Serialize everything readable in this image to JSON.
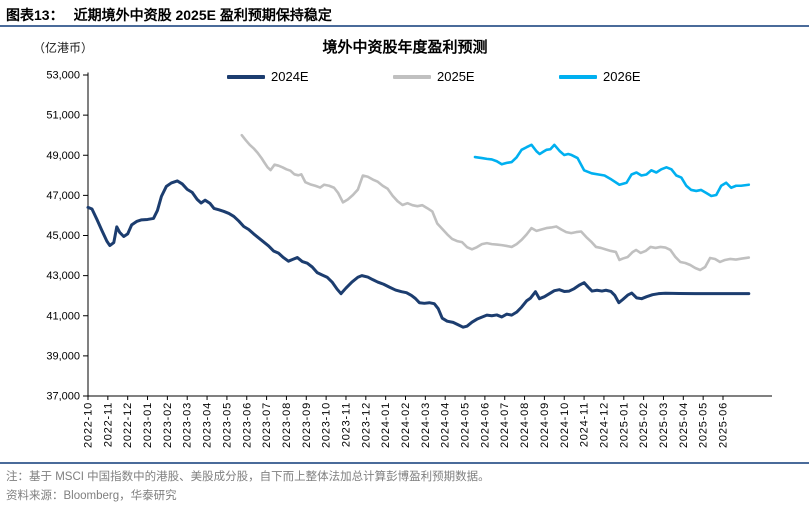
{
  "header": {
    "figure_label": "图表13：",
    "figure_title": "近期境外中资股 2025E 盈利预期保持稳定"
  },
  "chart_data": {
    "type": "line",
    "title": "境外中资股年度盈利预测",
    "y_unit_label": "（亿港币）",
    "legend_position": "top",
    "grid": false,
    "y_axis": {
      "min": 37000,
      "max": 53000,
      "tick_step": 2000,
      "tick_values": [
        37000,
        39000,
        41000,
        43000,
        45000,
        47000,
        49000,
        51000,
        53000
      ]
    },
    "x_tick_labels": [
      "2022-10",
      "2022-11",
      "2022-12",
      "2023-01",
      "2023-02",
      "2023-03",
      "2023-04",
      "2023-05",
      "2023-06",
      "2023-07",
      "2023-08",
      "2023-09",
      "2023-10",
      "2023-11",
      "2023-12",
      "2024-01",
      "2024-02",
      "2024-03",
      "2024-04",
      "2024-05",
      "2024-06",
      "2024-07",
      "2024-08",
      "2024-09",
      "2024-10",
      "2024-11",
      "2024-12",
      "2025-01",
      "2025-02",
      "2025-03",
      "2025-04",
      "2025-05",
      "2025-06"
    ],
    "x_note": "points use t = months since 2022-10",
    "series": [
      {
        "name": "2024E",
        "color": "#1C3D6F",
        "width": 3,
        "points": [
          [
            0,
            46400
          ],
          [
            0.2,
            46320
          ],
          [
            0.45,
            45800
          ],
          [
            0.7,
            45250
          ],
          [
            0.95,
            44720
          ],
          [
            1.1,
            44500
          ],
          [
            1.3,
            44650
          ],
          [
            1.45,
            45430
          ],
          [
            1.6,
            45150
          ],
          [
            1.8,
            44950
          ],
          [
            2.0,
            45080
          ],
          [
            2.2,
            45530
          ],
          [
            2.45,
            45700
          ],
          [
            2.7,
            45780
          ],
          [
            3.0,
            45800
          ],
          [
            3.3,
            45850
          ],
          [
            3.5,
            46250
          ],
          [
            3.7,
            46950
          ],
          [
            3.95,
            47450
          ],
          [
            4.2,
            47620
          ],
          [
            4.5,
            47720
          ],
          [
            4.75,
            47570
          ],
          [
            5.0,
            47300
          ],
          [
            5.25,
            47150
          ],
          [
            5.5,
            46800
          ],
          [
            5.7,
            46620
          ],
          [
            5.9,
            46760
          ],
          [
            6.15,
            46600
          ],
          [
            6.35,
            46350
          ],
          [
            6.6,
            46280
          ],
          [
            6.85,
            46200
          ],
          [
            7.1,
            46100
          ],
          [
            7.35,
            45950
          ],
          [
            7.6,
            45720
          ],
          [
            7.85,
            45450
          ],
          [
            8.1,
            45300
          ],
          [
            8.35,
            45080
          ],
          [
            8.6,
            44880
          ],
          [
            8.85,
            44680
          ],
          [
            9.1,
            44480
          ],
          [
            9.35,
            44230
          ],
          [
            9.6,
            44120
          ],
          [
            9.85,
            43900
          ],
          [
            10.1,
            43720
          ],
          [
            10.35,
            43820
          ],
          [
            10.55,
            43900
          ],
          [
            10.8,
            43700
          ],
          [
            11.05,
            43620
          ],
          [
            11.3,
            43430
          ],
          [
            11.55,
            43150
          ],
          [
            11.8,
            43030
          ],
          [
            12.05,
            42920
          ],
          [
            12.3,
            42680
          ],
          [
            12.55,
            42330
          ],
          [
            12.75,
            42100
          ],
          [
            13.0,
            42380
          ],
          [
            13.3,
            42680
          ],
          [
            13.6,
            42920
          ],
          [
            13.8,
            43000
          ],
          [
            14.1,
            42930
          ],
          [
            14.35,
            42800
          ],
          [
            14.6,
            42680
          ],
          [
            14.9,
            42570
          ],
          [
            15.2,
            42420
          ],
          [
            15.5,
            42280
          ],
          [
            15.8,
            42200
          ],
          [
            16.05,
            42150
          ],
          [
            16.3,
            42010
          ],
          [
            16.5,
            41860
          ],
          [
            16.7,
            41650
          ],
          [
            16.95,
            41620
          ],
          [
            17.2,
            41650
          ],
          [
            17.45,
            41600
          ],
          [
            17.65,
            41350
          ],
          [
            17.85,
            40880
          ],
          [
            18.1,
            40730
          ],
          [
            18.4,
            40670
          ],
          [
            18.65,
            40550
          ],
          [
            18.9,
            40430
          ],
          [
            19.1,
            40480
          ],
          [
            19.35,
            40680
          ],
          [
            19.6,
            40830
          ],
          [
            19.85,
            40930
          ],
          [
            20.1,
            41030
          ],
          [
            20.35,
            41000
          ],
          [
            20.6,
            41040
          ],
          [
            20.85,
            40940
          ],
          [
            21.1,
            41080
          ],
          [
            21.35,
            41030
          ],
          [
            21.6,
            41180
          ],
          [
            21.85,
            41430
          ],
          [
            22.1,
            41740
          ],
          [
            22.3,
            41880
          ],
          [
            22.55,
            42200
          ],
          [
            22.75,
            41850
          ],
          [
            23.0,
            41950
          ],
          [
            23.25,
            42100
          ],
          [
            23.5,
            42250
          ],
          [
            23.75,
            42300
          ],
          [
            24.0,
            42210
          ],
          [
            24.25,
            42230
          ],
          [
            24.5,
            42350
          ],
          [
            24.75,
            42520
          ],
          [
            25.0,
            42650
          ],
          [
            25.2,
            42430
          ],
          [
            25.4,
            42230
          ],
          [
            25.65,
            42270
          ],
          [
            25.9,
            42230
          ],
          [
            26.1,
            42270
          ],
          [
            26.35,
            42210
          ],
          [
            26.55,
            42010
          ],
          [
            26.75,
            41650
          ],
          [
            26.95,
            41810
          ],
          [
            27.2,
            42030
          ],
          [
            27.4,
            42130
          ],
          [
            27.65,
            41890
          ],
          [
            27.9,
            41850
          ],
          [
            28.15,
            41950
          ],
          [
            28.45,
            42050
          ],
          [
            28.75,
            42100
          ],
          [
            29.1,
            42120
          ],
          [
            29.8,
            42110
          ],
          [
            30.6,
            42100
          ],
          [
            31.4,
            42100
          ],
          [
            32.2,
            42100
          ],
          [
            33.3,
            42100
          ]
        ]
      },
      {
        "name": "2025E",
        "color": "#C0C0C0",
        "width": 2.6,
        "points": [
          [
            7.75,
            50000
          ],
          [
            7.95,
            49750
          ],
          [
            8.15,
            49520
          ],
          [
            8.35,
            49340
          ],
          [
            8.55,
            49120
          ],
          [
            8.75,
            48850
          ],
          [
            8.9,
            48620
          ],
          [
            9.05,
            48400
          ],
          [
            9.2,
            48260
          ],
          [
            9.4,
            48530
          ],
          [
            9.6,
            48480
          ],
          [
            9.8,
            48400
          ],
          [
            10.0,
            48300
          ],
          [
            10.2,
            48230
          ],
          [
            10.4,
            48050
          ],
          [
            10.6,
            48000
          ],
          [
            10.75,
            48050
          ],
          [
            10.95,
            47660
          ],
          [
            11.2,
            47550
          ],
          [
            11.45,
            47480
          ],
          [
            11.7,
            47390
          ],
          [
            11.9,
            47530
          ],
          [
            12.15,
            47480
          ],
          [
            12.4,
            47380
          ],
          [
            12.6,
            47130
          ],
          [
            12.85,
            46650
          ],
          [
            13.1,
            46800
          ],
          [
            13.35,
            47020
          ],
          [
            13.6,
            47290
          ],
          [
            13.85,
            47990
          ],
          [
            14.1,
            47930
          ],
          [
            14.35,
            47790
          ],
          [
            14.6,
            47680
          ],
          [
            14.85,
            47480
          ],
          [
            15.1,
            47330
          ],
          [
            15.35,
            46980
          ],
          [
            15.6,
            46710
          ],
          [
            15.85,
            46520
          ],
          [
            16.1,
            46610
          ],
          [
            16.35,
            46510
          ],
          [
            16.6,
            46460
          ],
          [
            16.85,
            46510
          ],
          [
            17.1,
            46360
          ],
          [
            17.35,
            46200
          ],
          [
            17.6,
            45600
          ],
          [
            17.85,
            45330
          ],
          [
            18.1,
            45060
          ],
          [
            18.35,
            44830
          ],
          [
            18.6,
            44720
          ],
          [
            18.85,
            44670
          ],
          [
            19.1,
            44420
          ],
          [
            19.35,
            44310
          ],
          [
            19.6,
            44420
          ],
          [
            19.85,
            44570
          ],
          [
            20.1,
            44620
          ],
          [
            20.35,
            44570
          ],
          [
            20.6,
            44550
          ],
          [
            20.85,
            44520
          ],
          [
            21.1,
            44480
          ],
          [
            21.35,
            44430
          ],
          [
            21.6,
            44570
          ],
          [
            21.85,
            44780
          ],
          [
            22.1,
            45050
          ],
          [
            22.35,
            45370
          ],
          [
            22.6,
            45230
          ],
          [
            22.85,
            45300
          ],
          [
            23.1,
            45370
          ],
          [
            23.35,
            45400
          ],
          [
            23.6,
            45450
          ],
          [
            23.85,
            45300
          ],
          [
            24.1,
            45170
          ],
          [
            24.35,
            45120
          ],
          [
            24.6,
            45170
          ],
          [
            24.85,
            45200
          ],
          [
            25.1,
            44930
          ],
          [
            25.35,
            44700
          ],
          [
            25.6,
            44430
          ],
          [
            25.85,
            44380
          ],
          [
            26.1,
            44300
          ],
          [
            26.35,
            44230
          ],
          [
            26.6,
            44180
          ],
          [
            26.78,
            43780
          ],
          [
            26.95,
            43850
          ],
          [
            27.2,
            43930
          ],
          [
            27.45,
            44180
          ],
          [
            27.62,
            44280
          ],
          [
            27.85,
            44130
          ],
          [
            28.1,
            44230
          ],
          [
            28.35,
            44430
          ],
          [
            28.6,
            44380
          ],
          [
            28.85,
            44430
          ],
          [
            29.1,
            44400
          ],
          [
            29.35,
            44280
          ],
          [
            29.6,
            43930
          ],
          [
            29.85,
            43680
          ],
          [
            30.1,
            43630
          ],
          [
            30.35,
            43530
          ],
          [
            30.6,
            43380
          ],
          [
            30.85,
            43280
          ],
          [
            31.1,
            43430
          ],
          [
            31.35,
            43880
          ],
          [
            31.6,
            43830
          ],
          [
            31.85,
            43680
          ],
          [
            32.1,
            43780
          ],
          [
            32.35,
            43830
          ],
          [
            32.65,
            43800
          ],
          [
            32.95,
            43850
          ],
          [
            33.3,
            43900
          ]
        ]
      },
      {
        "name": "2026E",
        "color": "#00B0F0",
        "width": 2.6,
        "points": [
          [
            19.5,
            48910
          ],
          [
            19.85,
            48860
          ],
          [
            20.1,
            48820
          ],
          [
            20.35,
            48790
          ],
          [
            20.6,
            48700
          ],
          [
            20.85,
            48550
          ],
          [
            21.1,
            48620
          ],
          [
            21.35,
            48660
          ],
          [
            21.6,
            48900
          ],
          [
            21.85,
            49270
          ],
          [
            22.1,
            49400
          ],
          [
            22.35,
            49520
          ],
          [
            22.6,
            49200
          ],
          [
            22.76,
            49060
          ],
          [
            22.95,
            49180
          ],
          [
            23.1,
            49270
          ],
          [
            23.3,
            49300
          ],
          [
            23.5,
            49520
          ],
          [
            23.76,
            49220
          ],
          [
            24.0,
            49010
          ],
          [
            24.2,
            49060
          ],
          [
            24.37,
            49010
          ],
          [
            24.67,
            48860
          ],
          [
            25.0,
            48250
          ],
          [
            25.38,
            48100
          ],
          [
            25.73,
            48040
          ],
          [
            26.03,
            47990
          ],
          [
            26.38,
            47790
          ],
          [
            26.78,
            47530
          ],
          [
            27.14,
            47630
          ],
          [
            27.39,
            48040
          ],
          [
            27.64,
            48140
          ],
          [
            27.89,
            47990
          ],
          [
            28.14,
            48040
          ],
          [
            28.39,
            48250
          ],
          [
            28.64,
            48140
          ],
          [
            28.89,
            48300
          ],
          [
            29.15,
            48400
          ],
          [
            29.4,
            48300
          ],
          [
            29.65,
            47990
          ],
          [
            29.9,
            47890
          ],
          [
            30.15,
            47480
          ],
          [
            30.4,
            47270
          ],
          [
            30.65,
            47220
          ],
          [
            30.9,
            47270
          ],
          [
            31.16,
            47120
          ],
          [
            31.41,
            46970
          ],
          [
            31.66,
            47020
          ],
          [
            31.91,
            47480
          ],
          [
            32.16,
            47630
          ],
          [
            32.41,
            47380
          ],
          [
            32.66,
            47480
          ],
          [
            32.91,
            47480
          ],
          [
            33.3,
            47530
          ]
        ]
      }
    ]
  },
  "footer": {
    "note": "注：基于 MSCI 中国指数中的港股、美股成分股，自下而上整体法加总计算彭博盈利预期数据。",
    "source": "资料来源：Bloomberg，华泰研究"
  }
}
